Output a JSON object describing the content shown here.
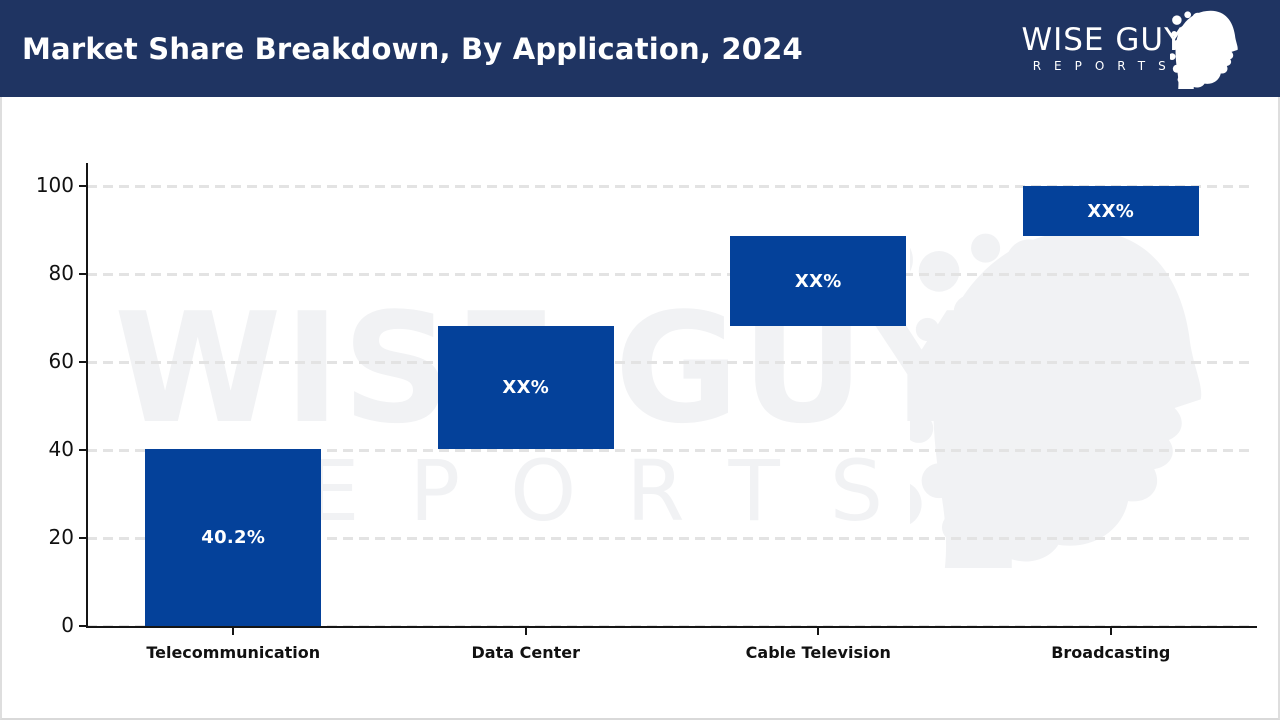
{
  "header": {
    "title": "Market Share Breakdown, By Application, 2024",
    "logo": {
      "wordmark": "WISE GUY",
      "subtext": "REPORTS"
    }
  },
  "watermark": {
    "line1": "WISE GUY",
    "line2": "REPORTS"
  },
  "chart_data": {
    "type": "bar",
    "subtype": "waterfall",
    "title": "Market Share Breakdown, By Application, 2024",
    "categories": [
      "Telecommunication",
      "Data Center",
      "Cable Television",
      "Broadcasting"
    ],
    "segments": [
      {
        "category": "Telecommunication",
        "start": 0,
        "end": 40.2,
        "label": "40.2%"
      },
      {
        "category": "Data Center",
        "start": 40.2,
        "end": 68.2,
        "label": "XX%"
      },
      {
        "category": "Cable Television",
        "start": 68.2,
        "end": 88.6,
        "label": "XX%"
      },
      {
        "category": "Broadcasting",
        "start": 88.6,
        "end": 100,
        "label": "XX%"
      }
    ],
    "y_ticks": [
      0,
      20,
      40,
      60,
      80,
      100
    ],
    "ylim": [
      0,
      105
    ],
    "xlabel": "",
    "ylabel": "",
    "grid": "horizontal-dashed",
    "legend": "none",
    "colors": {
      "bar": "#04419a",
      "bar_label": "#ffffff",
      "axis": "#151515",
      "grid": "#e3e3e3",
      "header_bg": "#1f3462",
      "watermark": "#f1f2f4"
    }
  }
}
